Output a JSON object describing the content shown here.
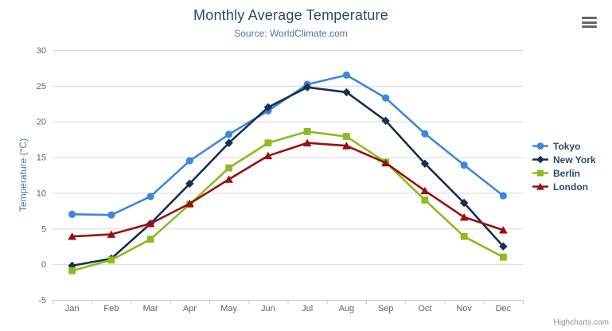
{
  "header": {
    "title": "Monthly Average Temperature",
    "subtitle": "Source: WorldClimate.com"
  },
  "chart_data": {
    "type": "line",
    "title": "Monthly Average Temperature",
    "subtitle": "Source: WorldClimate.com",
    "xlabel": "",
    "ylabel": "Temperature (°C)",
    "categories": [
      "Jan",
      "Feb",
      "Mar",
      "Apr",
      "May",
      "Jun",
      "Jul",
      "Aug",
      "Sep",
      "Oct",
      "Nov",
      "Dec"
    ],
    "yticks": [
      -5,
      0,
      5,
      10,
      15,
      20,
      25,
      30
    ],
    "ylim": [
      -5,
      30
    ],
    "grid": "horizontal",
    "legend_position": "right",
    "series": [
      {
        "name": "Tokyo",
        "marker": "circle",
        "color": "#3b87e0",
        "values": [
          7.0,
          6.9,
          9.5,
          14.5,
          18.2,
          21.5,
          25.2,
          26.5,
          23.3,
          18.3,
          13.9,
          9.6
        ]
      },
      {
        "name": "New York",
        "marker": "diamond",
        "color": "#16304f",
        "values": [
          -0.2,
          0.8,
          5.7,
          11.3,
          17.0,
          22.0,
          24.8,
          24.1,
          20.1,
          14.1,
          8.6,
          2.5
        ]
      },
      {
        "name": "Berlin",
        "marker": "square",
        "color": "#8bbc21",
        "values": [
          -0.9,
          0.6,
          3.5,
          8.4,
          13.5,
          17.0,
          18.6,
          17.9,
          14.3,
          9.0,
          3.9,
          1.0
        ]
      },
      {
        "name": "London",
        "marker": "triangle",
        "color": "#9a0f0f",
        "values": [
          3.9,
          4.2,
          5.7,
          8.5,
          11.9,
          15.2,
          17.0,
          16.6,
          14.2,
          10.3,
          6.6,
          4.8
        ]
      }
    ]
  },
  "colors": {
    "title": "#274b6d",
    "subtitle": "#4d759e",
    "axis_label": "#606060",
    "axis_title": "#4d759e",
    "gridline": "#d8d8d8",
    "axis_line": "#c0d0e0",
    "legend_text": "#274b6d",
    "credit": "#909090",
    "menu_icon": "#666666"
  },
  "credit": {
    "label": "Highcharts.com"
  }
}
